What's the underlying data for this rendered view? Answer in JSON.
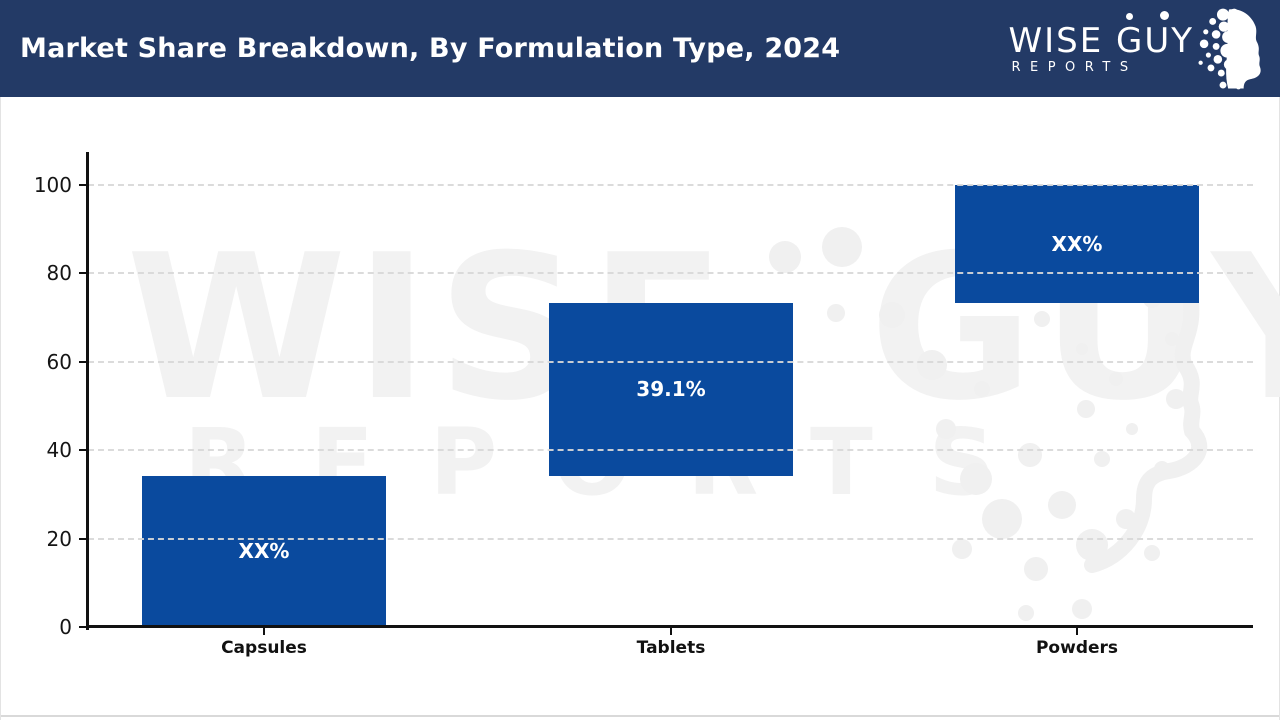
{
  "header": {
    "title": "Market Share Breakdown, By Formulation Type, 2024",
    "logo": {
      "line1": "WISE GUY",
      "line2": "REPORTS"
    }
  },
  "watermark": {
    "line1": "WISE GUY",
    "line2": "REPORTS"
  },
  "chart_data": {
    "type": "bar",
    "subtype": "floating-segment bars (waterfall-style cumulative share)",
    "title": "Market Share Breakdown, By Formulation Type, 2024",
    "categories": [
      "Capsules",
      "Tablets",
      "Powders"
    ],
    "series": [
      {
        "name": "Capsules",
        "from": 0,
        "to": 34.2,
        "label": "XX%"
      },
      {
        "name": "Tablets",
        "from": 34.2,
        "to": 73.3,
        "label": "39.1%"
      },
      {
        "name": "Powders",
        "from": 73.3,
        "to": 100,
        "label": "XX%"
      }
    ],
    "xlabel": "",
    "ylabel": "",
    "ylim": [
      0,
      100
    ],
    "yticks": [
      0,
      20,
      40,
      60,
      80,
      100
    ],
    "grid": "horizontal dashed gridlines drawn above bars",
    "legend": "none",
    "bar_color": "#0a4a9e",
    "label_color": "#ffffff"
  },
  "colors": {
    "header_bg": "#233a66",
    "bar": "#0a4a9e",
    "grid": "#d9d9d9",
    "axis": "#111111",
    "watermark": "#f2f2f2"
  }
}
